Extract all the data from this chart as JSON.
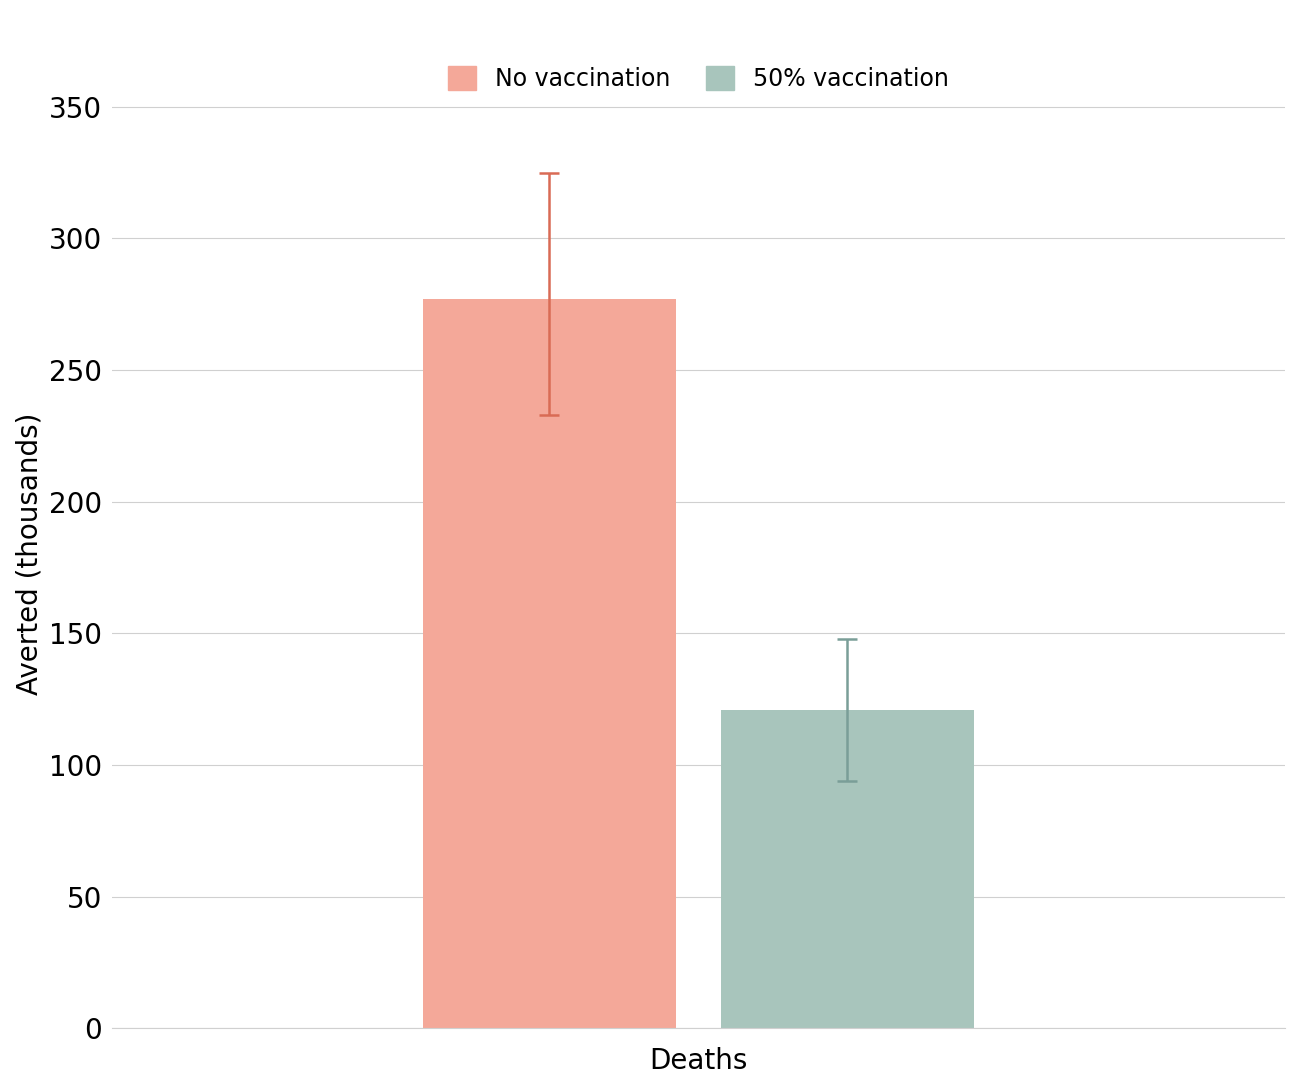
{
  "bar1_value": 277,
  "bar2_value": 121,
  "bar1_error_upper": 48,
  "bar1_error_lower": 44,
  "bar2_error_upper": 27,
  "bar2_error_lower": 27,
  "bar1_color": "#F4A899",
  "bar2_color": "#A8C5BC",
  "bar1_error_color": "#D96B55",
  "bar2_error_color": "#7A9E98",
  "legend_label1": "No vaccination",
  "legend_label2": "50% vaccination",
  "ylabel": "Averted (thousands)",
  "xlabel": "Deaths",
  "ylim": [
    0,
    360
  ],
  "yticks": [
    0,
    50,
    100,
    150,
    200,
    250,
    300,
    350
  ],
  "background_color": "#ffffff",
  "grid_color": "#d0d0d0",
  "tick_fontsize": 20,
  "label_fontsize": 20,
  "legend_fontsize": 17
}
